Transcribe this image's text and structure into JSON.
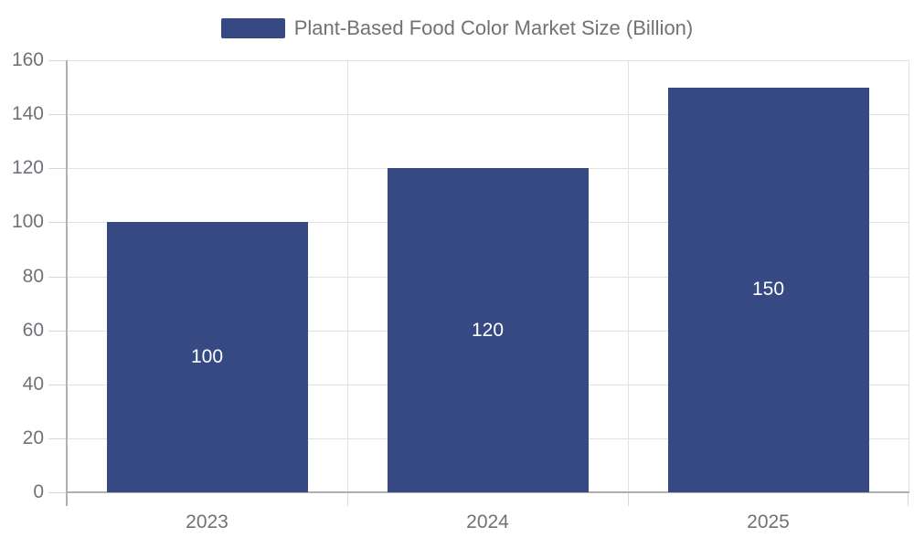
{
  "legend": {
    "label": "Plant-Based Food Color Market Size (Billion)"
  },
  "chart_data": {
    "type": "bar",
    "title": "Plant-Based Food Color Market Size (Billion)",
    "categories": [
      "2023",
      "2024",
      "2025"
    ],
    "values": [
      100,
      120,
      150
    ],
    "data_labels": [
      "100",
      "120",
      "150"
    ],
    "xlabel": "",
    "ylabel": "",
    "ylim": [
      0,
      160
    ],
    "yticks": [
      0,
      20,
      40,
      60,
      80,
      100,
      120,
      140,
      160
    ],
    "legend_position": "top-center",
    "grid": true,
    "colors": {
      "bar": "#364983",
      "bar_label": "#ffffff",
      "axis_text": "#6f7277",
      "grid_line": "#e2e2e2",
      "tick_line": "#d9d9d9",
      "axis_line": "#b0b0b0",
      "background": "#ffffff"
    }
  }
}
